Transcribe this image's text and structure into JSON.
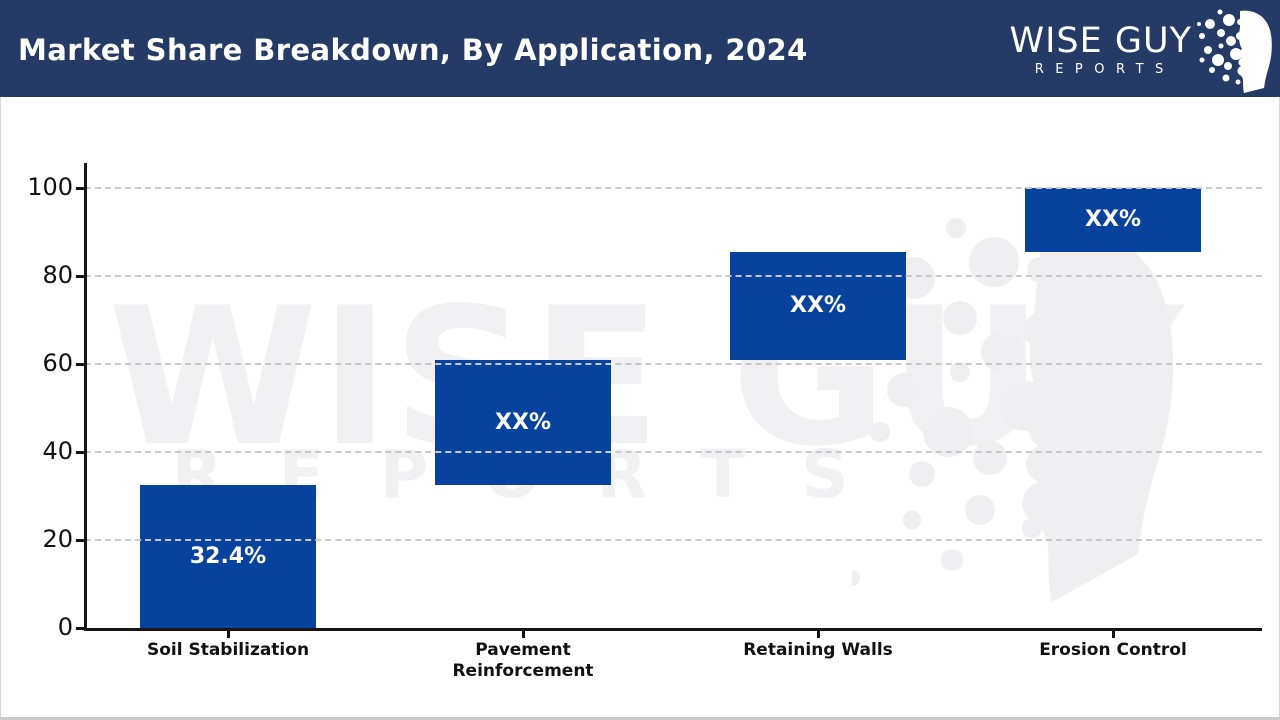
{
  "header": {
    "title": "Market Share Breakdown, By Application, 2024",
    "logo": {
      "brand": "WISE GUY",
      "sub": "REPORTS"
    }
  },
  "watermark": {
    "line1": "WISE GUY",
    "line2": "REPORTS"
  },
  "colors": {
    "header_bg": "#253A66",
    "bar_blue": "#08429F",
    "grid_gray": "#C9C9C9",
    "axis_black": "#151515",
    "bar_label_white": "#FFFFFF",
    "watermark_gray": "#F1F1F3"
  },
  "chart_data": {
    "type": "bar",
    "subtype": "waterfall",
    "title": "Market Share Breakdown, By Application, 2024",
    "categories": [
      "Soil Stabilization",
      "Pavement\nReinforcement",
      "Retaining Walls",
      "Erosion Control"
    ],
    "segments": [
      {
        "category": "Soil Stabilization",
        "start": 0,
        "end": 32.4,
        "label": "32.4%"
      },
      {
        "category": "Pavement Reinforcement",
        "start": 32.4,
        "end": 61.0,
        "label": "XX%"
      },
      {
        "category": "Retaining Walls",
        "start": 61.0,
        "end": 85.5,
        "label": "XX%"
      },
      {
        "category": "Erosion Control",
        "start": 85.5,
        "end": 100.0,
        "label": "XX%"
      }
    ],
    "xlabel": "",
    "ylabel": "",
    "yticks": [
      0,
      20,
      40,
      60,
      80,
      100
    ],
    "ylim": [
      0,
      105
    ],
    "grid": "dashed horizontal",
    "legend": "none",
    "bar_color": "#08429F"
  }
}
